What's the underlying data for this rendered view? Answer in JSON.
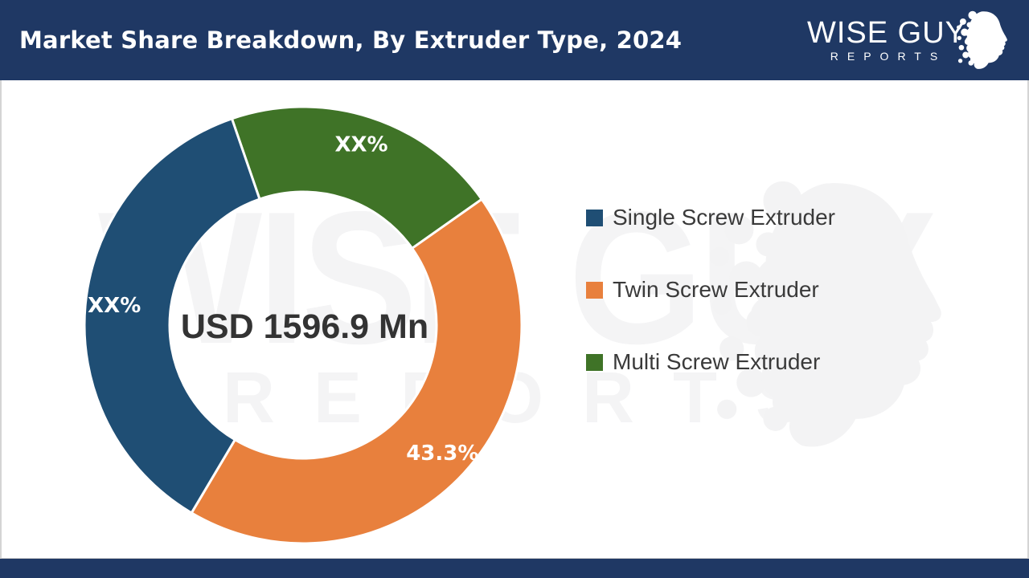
{
  "header": {
    "title": "Market Share Breakdown, By Extruder Type, 2024",
    "bg_color": "#1F3864",
    "logo": {
      "brand": "WISE GUY",
      "subtitle": "REPORTS"
    }
  },
  "watermark": {
    "line1": "WISE GUY",
    "line2": "REPORTS"
  },
  "chart_data": {
    "type": "donut",
    "title": "Market Share Breakdown, By Extruder Type, 2024",
    "center_label": "USD 1596.9 Mn",
    "start_angle_deg": 109,
    "direction": "clockwise",
    "segments": [
      {
        "name": "Multi Screw Extruder",
        "display_label": "XX%",
        "share_pct_est": 20.5,
        "color": "#3F7327"
      },
      {
        "name": "Twin Screw Extruder",
        "display_label": "43.3%",
        "share_pct_est": 43.3,
        "color": "#E8803D"
      },
      {
        "name": "Single Screw Extruder",
        "display_label": "XX%",
        "share_pct_est": 36.2,
        "color": "#1F4E74"
      }
    ],
    "legend": [
      {
        "label": "Single Screw Extruder",
        "color": "#1F4E74"
      },
      {
        "label": "Twin Screw Extruder",
        "color": "#E8803D"
      },
      {
        "label": "Multi Screw Extruder",
        "color": "#3F7327"
      }
    ],
    "legend_position": "right"
  }
}
